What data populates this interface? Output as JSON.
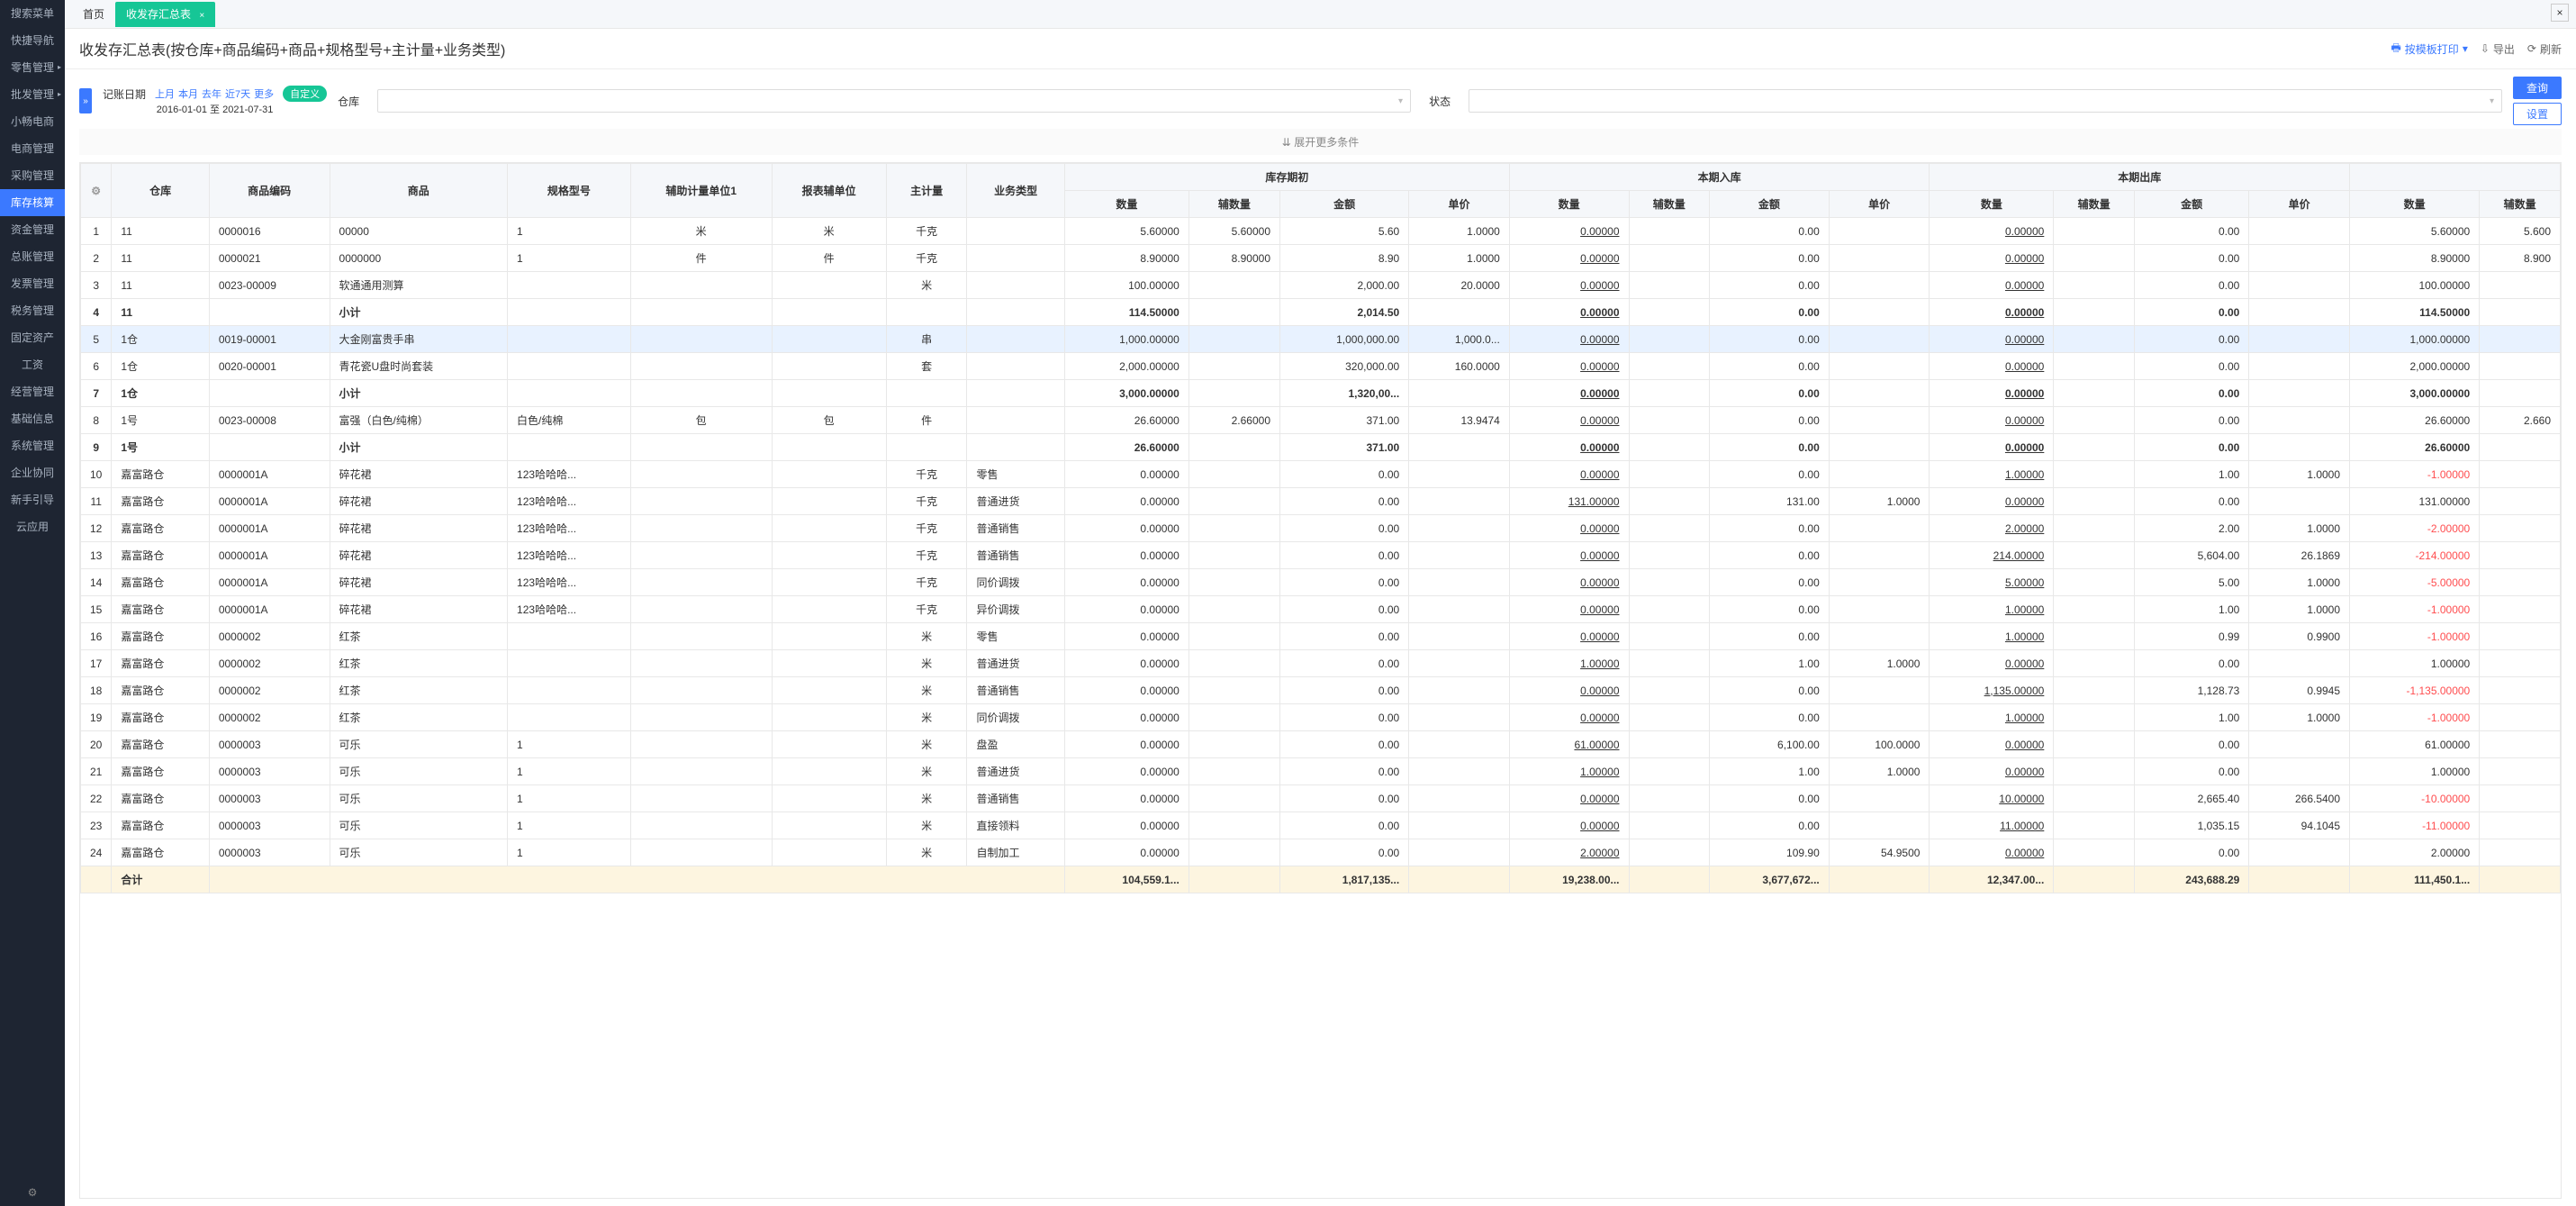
{
  "colors": {
    "sidebar_bg": "#1e2532",
    "accent_blue": "#3b79ff",
    "accent_green": "#16c696",
    "neg": "#ff4d4f",
    "grand_bg": "#fdf5e0",
    "highlight_bg": "#e8f2ff"
  },
  "sidebar": {
    "items": [
      {
        "label": "搜索菜单",
        "arrow": false
      },
      {
        "label": "快捷导航",
        "arrow": false
      },
      {
        "label": "零售管理",
        "arrow": true
      },
      {
        "label": "批发管理",
        "arrow": true
      },
      {
        "label": "小畅电商",
        "arrow": false
      },
      {
        "label": "电商管理",
        "arrow": false
      },
      {
        "label": "采购管理",
        "arrow": false
      },
      {
        "label": "库存核算",
        "arrow": false,
        "active": true
      },
      {
        "label": "资金管理",
        "arrow": false
      },
      {
        "label": "总账管理",
        "arrow": false
      },
      {
        "label": "发票管理",
        "arrow": false
      },
      {
        "label": "税务管理",
        "arrow": false
      },
      {
        "label": "固定资产",
        "arrow": false
      },
      {
        "label": "工资",
        "arrow": false
      },
      {
        "label": "经营管理",
        "arrow": false
      },
      {
        "label": "基础信息",
        "arrow": false
      },
      {
        "label": "系统管理",
        "arrow": false
      },
      {
        "label": "企业协同",
        "arrow": false
      },
      {
        "label": "新手引导",
        "arrow": false
      },
      {
        "label": "云应用",
        "arrow": false
      }
    ]
  },
  "tabs": {
    "home": "首页",
    "active": "收发存汇总表"
  },
  "header": {
    "title": "收发存汇总表(按仓库+商品编码+商品+规格型号+主计量+业务类型)",
    "print": "按模板打印",
    "export": "导出",
    "refresh": "刷新"
  },
  "filter": {
    "date_label": "记账日期",
    "links": [
      "上月",
      "本月",
      "去年",
      "近7天",
      "更多"
    ],
    "custom": "自定义",
    "range": "2016-01-01 至 2021-07-31",
    "wh_label": "仓库",
    "status_label": "状态",
    "query": "查询",
    "settings": "设置",
    "expand": "展开更多条件"
  },
  "table": {
    "groupHeaders": [
      "库存期初",
      "本期入库",
      "本期出库"
    ],
    "cols": [
      "仓库",
      "商品编码",
      "商品",
      "规格型号",
      "辅助计量单位1",
      "报表辅单位",
      "主计量",
      "业务类型"
    ],
    "subcols": [
      "数量",
      "辅数量",
      "金额",
      "单价",
      "数量",
      "辅数量",
      "金额",
      "单价",
      "数量",
      "辅数量",
      "金额",
      "单价",
      "数量",
      "辅数量"
    ],
    "rows": [
      {
        "n": 1,
        "wh": "11",
        "code": "0000016",
        "name": "00000",
        "spec": "1",
        "u1": "米",
        "u2": "米",
        "mu": "千克",
        "bt": "",
        "d": [
          "5.60000",
          "5.60000",
          "5.60",
          "1.0000",
          "0.00000",
          "",
          "0.00",
          "",
          "0.00000",
          "",
          "0.00",
          "",
          "5.60000",
          "5.600"
        ],
        "links": [
          4,
          8
        ],
        "neg": []
      },
      {
        "n": 2,
        "wh": "11",
        "code": "0000021",
        "name": "0000000",
        "spec": "1",
        "u1": "件",
        "u2": "件",
        "mu": "千克",
        "bt": "",
        "d": [
          "8.90000",
          "8.90000",
          "8.90",
          "1.0000",
          "0.00000",
          "",
          "0.00",
          "",
          "0.00000",
          "",
          "0.00",
          "",
          "8.90000",
          "8.900"
        ],
        "links": [
          4,
          8
        ],
        "neg": []
      },
      {
        "n": 3,
        "wh": "11",
        "code": "0023-00009",
        "name": "软通通用测算",
        "spec": "",
        "u1": "",
        "u2": "",
        "mu": "米",
        "bt": "",
        "d": [
          "100.00000",
          "",
          "2,000.00",
          "20.0000",
          "0.00000",
          "",
          "0.00",
          "",
          "0.00000",
          "",
          "0.00",
          "",
          "100.00000",
          ""
        ],
        "links": [
          4,
          8
        ],
        "neg": []
      },
      {
        "n": 4,
        "wh": "11",
        "code": "",
        "name": "小计",
        "spec": "",
        "u1": "",
        "u2": "",
        "mu": "",
        "bt": "",
        "d": [
          "114.50000",
          "",
          "2,014.50",
          "",
          "0.00000",
          "",
          "0.00",
          "",
          "0.00000",
          "",
          "0.00",
          "",
          "114.50000",
          ""
        ],
        "subtotal": true,
        "links": [
          4,
          8
        ],
        "neg": []
      },
      {
        "n": 5,
        "wh": "1仓",
        "code": "0019-00001",
        "name": "大金刚富贵手串",
        "spec": "",
        "u1": "",
        "u2": "",
        "mu": "串",
        "bt": "",
        "d": [
          "1,000.00000",
          "",
          "1,000,000.00",
          "1,000.0...",
          "0.00000",
          "",
          "0.00",
          "",
          "0.00000",
          "",
          "0.00",
          "",
          "1,000.00000",
          ""
        ],
        "highlight": true,
        "links": [
          4,
          8
        ],
        "neg": []
      },
      {
        "n": 6,
        "wh": "1仓",
        "code": "0020-00001",
        "name": "青花瓷U盘时尚套装",
        "spec": "",
        "u1": "",
        "u2": "",
        "mu": "套",
        "bt": "",
        "d": [
          "2,000.00000",
          "",
          "320,000.00",
          "160.0000",
          "0.00000",
          "",
          "0.00",
          "",
          "0.00000",
          "",
          "0.00",
          "",
          "2,000.00000",
          ""
        ],
        "links": [
          4,
          8
        ],
        "neg": []
      },
      {
        "n": 7,
        "wh": "1仓",
        "code": "",
        "name": "小计",
        "spec": "",
        "u1": "",
        "u2": "",
        "mu": "",
        "bt": "",
        "d": [
          "3,000.00000",
          "",
          "1,320,00...",
          "",
          "0.00000",
          "",
          "0.00",
          "",
          "0.00000",
          "",
          "0.00",
          "",
          "3,000.00000",
          ""
        ],
        "subtotal": true,
        "links": [
          4,
          8
        ],
        "neg": []
      },
      {
        "n": 8,
        "wh": "1号",
        "code": "0023-00008",
        "name": "富强（白色/纯棉）",
        "spec": "白色/纯棉",
        "u1": "包",
        "u2": "包",
        "mu": "件",
        "bt": "",
        "d": [
          "26.60000",
          "2.66000",
          "371.00",
          "13.9474",
          "0.00000",
          "",
          "0.00",
          "",
          "0.00000",
          "",
          "0.00",
          "",
          "26.60000",
          "2.660"
        ],
        "links": [
          4,
          8
        ],
        "neg": []
      },
      {
        "n": 9,
        "wh": "1号",
        "code": "",
        "name": "小计",
        "spec": "",
        "u1": "",
        "u2": "",
        "mu": "",
        "bt": "",
        "d": [
          "26.60000",
          "",
          "371.00",
          "",
          "0.00000",
          "",
          "0.00",
          "",
          "0.00000",
          "",
          "0.00",
          "",
          "26.60000",
          ""
        ],
        "subtotal": true,
        "links": [
          4,
          8
        ],
        "neg": []
      },
      {
        "n": 10,
        "wh": "嘉富路仓",
        "code": "0000001A",
        "name": "碎花裙",
        "spec": "123哈哈哈...",
        "u1": "",
        "u2": "",
        "mu": "千克",
        "bt": "零售",
        "d": [
          "0.00000",
          "",
          "0.00",
          "",
          "0.00000",
          "",
          "0.00",
          "",
          "1.00000",
          "",
          "1.00",
          "1.0000",
          "-1.00000",
          ""
        ],
        "links": [
          4,
          8
        ],
        "neg": [
          12
        ]
      },
      {
        "n": 11,
        "wh": "嘉富路仓",
        "code": "0000001A",
        "name": "碎花裙",
        "spec": "123哈哈哈...",
        "u1": "",
        "u2": "",
        "mu": "千克",
        "bt": "普通进货",
        "d": [
          "0.00000",
          "",
          "0.00",
          "",
          "131.00000",
          "",
          "131.00",
          "1.0000",
          "0.00000",
          "",
          "0.00",
          "",
          "131.00000",
          ""
        ],
        "links": [
          4,
          8
        ],
        "neg": []
      },
      {
        "n": 12,
        "wh": "嘉富路仓",
        "code": "0000001A",
        "name": "碎花裙",
        "spec": "123哈哈哈...",
        "u1": "",
        "u2": "",
        "mu": "千克",
        "bt": "普通销售",
        "d": [
          "0.00000",
          "",
          "0.00",
          "",
          "0.00000",
          "",
          "0.00",
          "",
          "2.00000",
          "",
          "2.00",
          "1.0000",
          "-2.00000",
          ""
        ],
        "links": [
          4,
          8
        ],
        "neg": [
          12
        ]
      },
      {
        "n": 13,
        "wh": "嘉富路仓",
        "code": "0000001A",
        "name": "碎花裙",
        "spec": "123哈哈哈...",
        "u1": "",
        "u2": "",
        "mu": "千克",
        "bt": "普通销售",
        "d": [
          "0.00000",
          "",
          "0.00",
          "",
          "0.00000",
          "",
          "0.00",
          "",
          "214.00000",
          "",
          "5,604.00",
          "26.1869",
          "-214.00000",
          ""
        ],
        "links": [
          4,
          8
        ],
        "neg": [
          12
        ]
      },
      {
        "n": 14,
        "wh": "嘉富路仓",
        "code": "0000001A",
        "name": "碎花裙",
        "spec": "123哈哈哈...",
        "u1": "",
        "u2": "",
        "mu": "千克",
        "bt": "同价调拨",
        "d": [
          "0.00000",
          "",
          "0.00",
          "",
          "0.00000",
          "",
          "0.00",
          "",
          "5.00000",
          "",
          "5.00",
          "1.0000",
          "-5.00000",
          ""
        ],
        "links": [
          4,
          8
        ],
        "neg": [
          12
        ]
      },
      {
        "n": 15,
        "wh": "嘉富路仓",
        "code": "0000001A",
        "name": "碎花裙",
        "spec": "123哈哈哈...",
        "u1": "",
        "u2": "",
        "mu": "千克",
        "bt": "异价调拨",
        "d": [
          "0.00000",
          "",
          "0.00",
          "",
          "0.00000",
          "",
          "0.00",
          "",
          "1.00000",
          "",
          "1.00",
          "1.0000",
          "-1.00000",
          ""
        ],
        "links": [
          4,
          8
        ],
        "neg": [
          12
        ]
      },
      {
        "n": 16,
        "wh": "嘉富路仓",
        "code": "0000002",
        "name": "红茶",
        "spec": "",
        "u1": "",
        "u2": "",
        "mu": "米",
        "bt": "零售",
        "d": [
          "0.00000",
          "",
          "0.00",
          "",
          "0.00000",
          "",
          "0.00",
          "",
          "1.00000",
          "",
          "0.99",
          "0.9900",
          "-1.00000",
          ""
        ],
        "links": [
          4,
          8
        ],
        "neg": [
          12
        ]
      },
      {
        "n": 17,
        "wh": "嘉富路仓",
        "code": "0000002",
        "name": "红茶",
        "spec": "",
        "u1": "",
        "u2": "",
        "mu": "米",
        "bt": "普通进货",
        "d": [
          "0.00000",
          "",
          "0.00",
          "",
          "1.00000",
          "",
          "1.00",
          "1.0000",
          "0.00000",
          "",
          "0.00",
          "",
          "1.00000",
          ""
        ],
        "links": [
          4,
          8
        ],
        "neg": []
      },
      {
        "n": 18,
        "wh": "嘉富路仓",
        "code": "0000002",
        "name": "红茶",
        "spec": "",
        "u1": "",
        "u2": "",
        "mu": "米",
        "bt": "普通销售",
        "d": [
          "0.00000",
          "",
          "0.00",
          "",
          "0.00000",
          "",
          "0.00",
          "",
          "1,135.00000",
          "",
          "1,128.73",
          "0.9945",
          "-1,135.00000",
          ""
        ],
        "links": [
          4,
          8
        ],
        "neg": [
          12
        ]
      },
      {
        "n": 19,
        "wh": "嘉富路仓",
        "code": "0000002",
        "name": "红茶",
        "spec": "",
        "u1": "",
        "u2": "",
        "mu": "米",
        "bt": "同价调拨",
        "d": [
          "0.00000",
          "",
          "0.00",
          "",
          "0.00000",
          "",
          "0.00",
          "",
          "1.00000",
          "",
          "1.00",
          "1.0000",
          "-1.00000",
          ""
        ],
        "links": [
          4,
          8
        ],
        "neg": [
          12
        ]
      },
      {
        "n": 20,
        "wh": "嘉富路仓",
        "code": "0000003",
        "name": "可乐",
        "spec": "1",
        "u1": "",
        "u2": "",
        "mu": "米",
        "bt": "盘盈",
        "d": [
          "0.00000",
          "",
          "0.00",
          "",
          "61.00000",
          "",
          "6,100.00",
          "100.0000",
          "0.00000",
          "",
          "0.00",
          "",
          "61.00000",
          ""
        ],
        "links": [
          4,
          8
        ],
        "neg": []
      },
      {
        "n": 21,
        "wh": "嘉富路仓",
        "code": "0000003",
        "name": "可乐",
        "spec": "1",
        "u1": "",
        "u2": "",
        "mu": "米",
        "bt": "普通进货",
        "d": [
          "0.00000",
          "",
          "0.00",
          "",
          "1.00000",
          "",
          "1.00",
          "1.0000",
          "0.00000",
          "",
          "0.00",
          "",
          "1.00000",
          ""
        ],
        "links": [
          4,
          8
        ],
        "neg": []
      },
      {
        "n": 22,
        "wh": "嘉富路仓",
        "code": "0000003",
        "name": "可乐",
        "spec": "1",
        "u1": "",
        "u2": "",
        "mu": "米",
        "bt": "普通销售",
        "d": [
          "0.00000",
          "",
          "0.00",
          "",
          "0.00000",
          "",
          "0.00",
          "",
          "10.00000",
          "",
          "2,665.40",
          "266.5400",
          "-10.00000",
          ""
        ],
        "links": [
          4,
          8
        ],
        "neg": [
          12
        ]
      },
      {
        "n": 23,
        "wh": "嘉富路仓",
        "code": "0000003",
        "name": "可乐",
        "spec": "1",
        "u1": "",
        "u2": "",
        "mu": "米",
        "bt": "直接领料",
        "d": [
          "0.00000",
          "",
          "0.00",
          "",
          "0.00000",
          "",
          "0.00",
          "",
          "11.00000",
          "",
          "1,035.15",
          "94.1045",
          "-11.00000",
          ""
        ],
        "links": [
          4,
          8
        ],
        "neg": [
          12
        ]
      },
      {
        "n": 24,
        "wh": "嘉富路仓",
        "code": "0000003",
        "name": "可乐",
        "spec": "1",
        "u1": "",
        "u2": "",
        "mu": "米",
        "bt": "自制加工",
        "d": [
          "0.00000",
          "",
          "0.00",
          "",
          "2.00000",
          "",
          "109.90",
          "54.9500",
          "0.00000",
          "",
          "0.00",
          "",
          "2.00000",
          ""
        ],
        "links": [
          4,
          8
        ],
        "neg": []
      }
    ],
    "grand": {
      "label": "合计",
      "d": [
        "104,559.1...",
        "",
        "1,817,135...",
        "",
        "19,238.00...",
        "",
        "3,677,672...",
        "",
        "12,347.00...",
        "",
        "243,688.29",
        "",
        "111,450.1...",
        ""
      ]
    }
  }
}
